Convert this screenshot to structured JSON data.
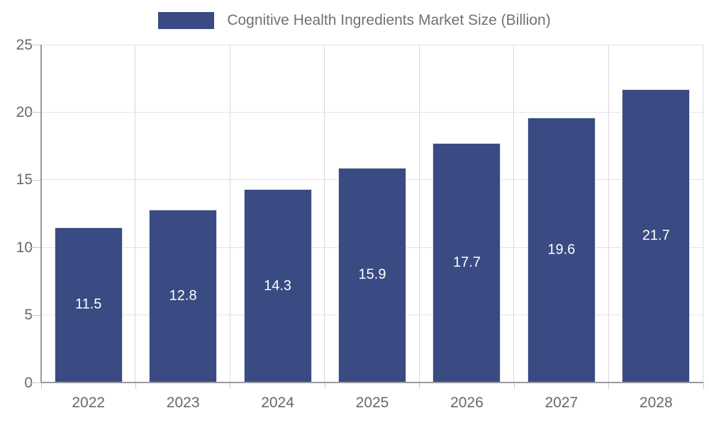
{
  "chart_data": {
    "type": "bar",
    "title": "Cognitive Health Ingredients Market Size (Billion)",
    "categories": [
      "2022",
      "2023",
      "2024",
      "2025",
      "2026",
      "2027",
      "2028"
    ],
    "values": [
      11.5,
      12.8,
      14.3,
      15.9,
      17.7,
      19.6,
      21.7
    ],
    "value_labels": [
      "11.5",
      "12.8",
      "14.3",
      "15.9",
      "17.7",
      "19.6",
      "21.7"
    ],
    "y_ticks": [
      0,
      5,
      10,
      15,
      20,
      25
    ],
    "ylim": [
      0,
      25
    ],
    "xlabel": "",
    "ylabel": "",
    "grid": true,
    "legend_position": "top",
    "bar_color": "#3a4a82",
    "value_label_color": "#ffffff",
    "axis_color": "#99999e",
    "grid_color": "#e4e4ea",
    "tick_label_color": "#68686d"
  },
  "legend": {
    "label": "Cognitive Health Ingredients Market Size (Billion)",
    "swatch_color": "#3a4a82"
  }
}
